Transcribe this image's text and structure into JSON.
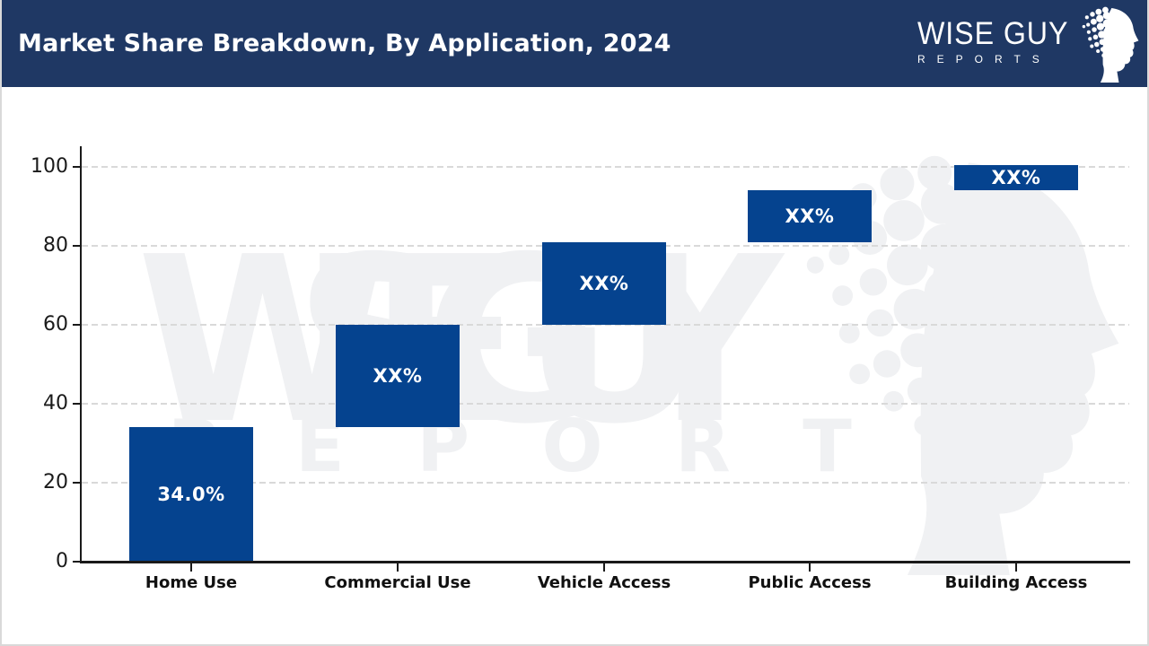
{
  "header": {
    "title": "Market Share Breakdown, By Application, 2024",
    "logo_line1": "WISE GUY",
    "logo_line2": "REPORTS"
  },
  "watermark": {
    "line1": "WISE GUY",
    "line2": "R E P O R T S"
  },
  "colors": {
    "header_bg": "#1f3864",
    "bar": "#05438f",
    "gridline": "#d9d9d9",
    "axis": "#1a1a1a",
    "watermark": "#f0f1f3"
  },
  "chart_data": {
    "type": "bar",
    "subtype": "waterfall-floating-segments",
    "title": "Market Share Breakdown, By Application, 2024",
    "xlabel": "",
    "ylabel": "",
    "unit": "%",
    "categories": [
      "Home Use",
      "Commercial Use",
      "Vehicle Access",
      "Public Access",
      "Building Access"
    ],
    "segments": [
      {
        "category": "Home Use",
        "start": 0,
        "end": 34,
        "label": "34.0%"
      },
      {
        "category": "Commercial Use",
        "start": 34,
        "end": 60,
        "label": "XX%"
      },
      {
        "category": "Vehicle Access",
        "start": 60,
        "end": 81,
        "label": "XX%"
      },
      {
        "category": "Public Access",
        "start": 81,
        "end": 94,
        "label": "XX%"
      },
      {
        "category": "Building Access",
        "start": 94,
        "end": 100.5,
        "label": "XX%"
      }
    ],
    "y_ticks": [
      0,
      20,
      40,
      60,
      80,
      100
    ],
    "ylim": [
      0,
      105
    ],
    "grid": "dashed horizontal",
    "legend": "none",
    "value_labels_inside_bars": true
  }
}
